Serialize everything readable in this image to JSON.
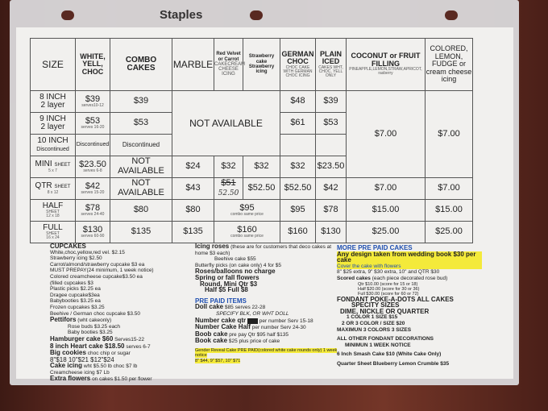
{
  "protector": {
    "brand": "Staples"
  },
  "table": {
    "headers": [
      {
        "title": "SIZE"
      },
      {
        "title": "WHITE, YELL, CHOC"
      },
      {
        "title": "COMBO CAKES"
      },
      {
        "title": "MARBLE"
      },
      {
        "title": "Red Velvet or Carrot",
        "sub": "CAKECREAM CHEESE ICING"
      },
      {
        "title": "Strawberry cake Strawberry icing"
      },
      {
        "title": "GERMAN CHOC",
        "sub": "CHOC CAKE WITH GERMAN CHOC ICING"
      },
      {
        "title": "PLAIN ICED",
        "sub": "CAKES WHT, CHOC, YELL ONLY"
      },
      {
        "title": "COCONUT or FRUIT FILLING",
        "sub": "PINEAPPLE,LEMON,STRAW,APRICOT, rasberry"
      },
      {
        "title": "COLORED, LEMON, FUDGE or cream cheese icing"
      }
    ],
    "rows": [
      {
        "size": "8 INCH",
        "size_sub": "2 layer",
        "wyc": "$39",
        "wyc_sub": "serves10-12",
        "combo": "$39",
        "german": "$48",
        "plain": "$39"
      },
      {
        "size": "9 INCH",
        "size_sub": "2 layer",
        "wyc": "$53",
        "wyc_sub": "serves 16-20",
        "combo": "$53",
        "german": "$61",
        "plain": "$53"
      },
      {
        "size": "10 INCH",
        "size_sub": "Discontinued",
        "wyc": "Discontinued",
        "combo": "Discontinued"
      },
      {
        "size": "MINI",
        "size_tag": "SHEET",
        "size_sub": "5 x 7",
        "wyc": "$23.50",
        "wyc_sub": "serves 6-8",
        "combo": "NOT AVAILABLE",
        "marble": "$24",
        "redvelvet": "$32",
        "strawberry": "$32",
        "german": "$32",
        "plain": "$23.50"
      },
      {
        "size": "QTR",
        "size_tag": "SHEET",
        "size_sub": "8 x 12",
        "wyc": "$42",
        "wyc_sub": "serves 15-20",
        "combo": "NOT AVAILABLE",
        "marble": "$43",
        "redvelvet_old": "$51",
        "redvelvet": "52.50",
        "strawberry": "$52.50",
        "german": "$52.50",
        "plain": "$42",
        "coconut": "$7.00",
        "colored": "$7.00"
      },
      {
        "size": "HALF",
        "size_tag": "SHEET",
        "size_sub": "12 x 18",
        "wyc": "$78",
        "wyc_sub": "serves 24-40",
        "combo": "$80",
        "marble": "$80",
        "rv_straw": "$95",
        "rv_straw_sub": "combo same price",
        "german": "$95",
        "plain": "$78",
        "coconut": "$15.00",
        "colored": "$15.00"
      },
      {
        "size": "FULL",
        "size_tag": "SHEET",
        "size_sub": "16 x 24",
        "wyc": "$130",
        "wyc_sub": "serves 60-90",
        "combo": "$135",
        "marble": "$135",
        "rv_straw": "$160",
        "rv_straw_sub": "combo same price",
        "german": "$160",
        "plain": "$130",
        "coconut": "$25.00",
        "colored": "$25.00"
      }
    ],
    "not_available": "NOT AVAILABLE",
    "coconut_top": "$7.00",
    "colored_top": "$7.00"
  },
  "cupcakes": {
    "title": "CUPCAKES",
    "lines": [
      "White,choc,yellow,red vel. $2.15",
      "Strawberry icing $2.50",
      "Carrot/almond/strawberry cupcake $3 ea",
      "MUST PREPAY(24 minimum, 1 week notice)",
      "Colored creamcheese cupcake$3.50 ea",
      "(filled cupcakes $3",
      "Plastic picks $2.25 ea",
      "Dragee cupcake$3ea",
      "Babybooties $3.25 ea",
      "Frozen cupcakes $3.25",
      "Beehive / German choc cupcake $3.50"
    ],
    "petitfors": "Pettifors",
    "petitfors_note": "(wht cakeonly)",
    "petitfors_lines": [
      "Rose buds $3.25 each",
      "Baby booties $3.25"
    ],
    "hamburger": "Hamburger cake $60",
    "hamburger_note": "Serves15-22",
    "heart": "8 inch Heart cake $18.50",
    "heart_note": "serves 6-7",
    "cookies": "Big cookies",
    "cookies_note": "choc chip or sugar",
    "cookie_prices": "8\"$18   10\"$21  $12\"$24",
    "icing": "Cake icing",
    "icing_note": "wht $5.50 lb choc $7  lb",
    "creamcheese": "Creamcheese icing $7 Lb",
    "extra": "Extra flowers",
    "extra_note": "on cakes $1.50 per flower"
  },
  "middle": {
    "roses": "Icing roses",
    "roses_note": "(these are for customers  that deco cakes at home $3 each)",
    "beehive": "Beehive cake $55",
    "butterfly": "Butterfly picks (on cake only)  4 for $5",
    "lines": [
      "Roses/balloons no charge",
      "Spring or fall flowers",
      "Round, Mini Qtr $3",
      "Half $5 Full $8"
    ],
    "prepaid_title": "PRE PAID ITEMS",
    "doll": "Doll cake",
    "doll_note": "$85 serves 22-28",
    "doll_spec": "SPECIFY BLK, OR WHT DOLL",
    "number_qtr": "Number cake qtr",
    "number_qtr_note": "per number Serv 15-18",
    "number_half": "Number Cake Half",
    "number_half_note": "per number Serv 24-30",
    "boob": "Boob cake",
    "boob_note": "pre pay  Qtr $95  half $135",
    "book": "Book cake",
    "book_note": "$25 plus price of cake",
    "gender": "Gender Reveal Cake PRE PAID(colored white cake rounds only)     1 week notice",
    "gender_prices": "8\" $44,  9\" $57,  10\" $71"
  },
  "right": {
    "title": "MORE PRE PAID CAKES",
    "wedding": "Any design taken from wedding book $30 per cake",
    "cover": "Cover the cake with flowers",
    "extras": "8\" $25 extra, 9\" $30 extra, 10\" and QTR $30",
    "scored": "Scored cakes",
    "scored_note": "(each piece decorated rose bud)",
    "scored_lines": [
      "Qtr $10.00 (score for 15 or 18)",
      "Half $20.00 (score for 30 or 36)",
      "Full $30.00 (score for 60 or 72)"
    ],
    "fondant": "FONDANT POKE-A-DOTS ALL CAKES",
    "specity": "SPECITY SIZES",
    "dime": "DIME, NICKLE OR QUARTER",
    "fondant_lines": [
      "1 COLOR 1 SIZE  $15",
      "2 OR 3 COLOR / SIZE  $20",
      "MAXIMUN 3 COLORS 3 SIZES"
    ],
    "other": "ALL OTHER FONDANT DECORATIONS",
    "notice": "MINIMUN 1 WEEK NOTICE",
    "smash": "6 Inch Smash Cake $10 (White Cake Only)",
    "crumble": "Quarter Sheet Blueberry Lemon Crumble $35"
  }
}
